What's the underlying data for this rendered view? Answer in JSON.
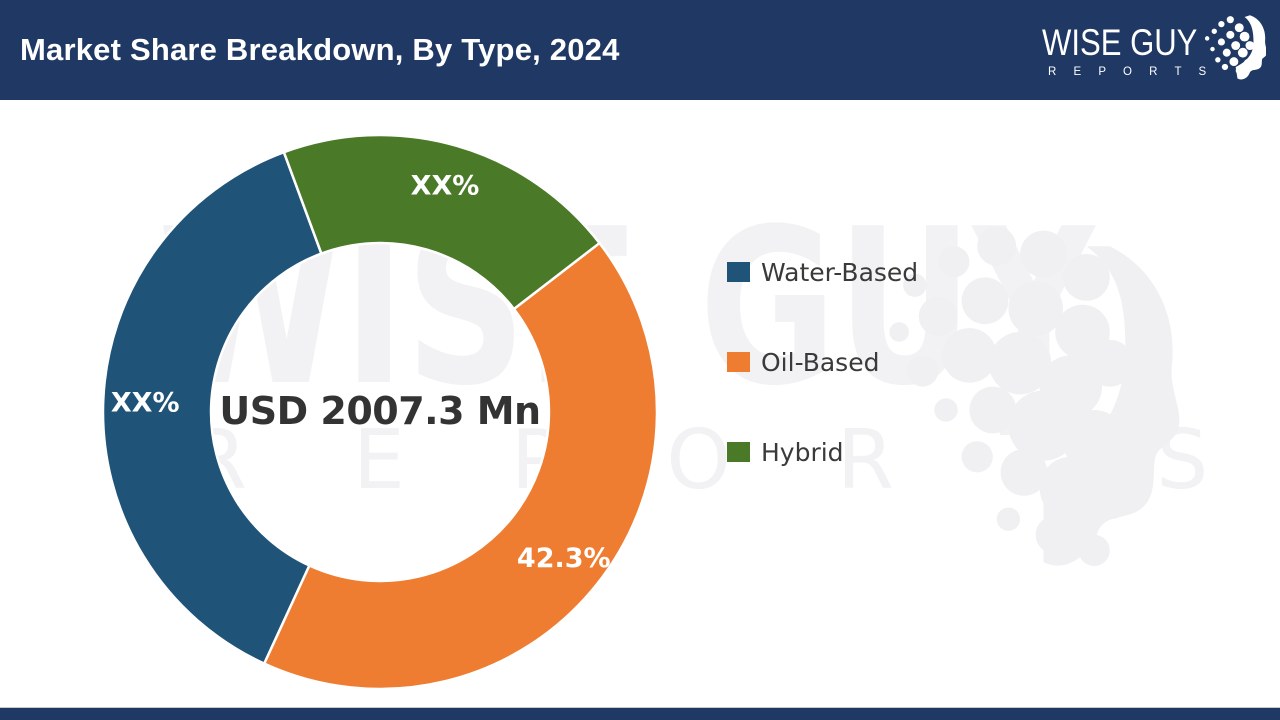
{
  "header": {
    "title": "Market Share Breakdown, By Type, 2024",
    "bg_color": "#1F3864",
    "logo": {
      "name": "WISE GUY",
      "subtext": "R E P O R T S"
    }
  },
  "watermark": {
    "line1": "WISE GUY",
    "line2": "R E P O R T S"
  },
  "chart_data": {
    "type": "pie",
    "subtype": "donut",
    "title": "Market Share Breakdown, By Type, 2024",
    "center_label": "USD 2007.3 Mn",
    "start_angle_deg": 110.3,
    "direction": "counterclockwise",
    "hole_ratio": 0.61,
    "legend_position": "right",
    "series": [
      {
        "name": "Water-Based",
        "value_pct_est": 37.5,
        "display_label": "XX%",
        "color": "#1F5378"
      },
      {
        "name": "Oil-Based",
        "value_pct_est": 42.3,
        "display_label": "42.3%",
        "color": "#EE7D32"
      },
      {
        "name": "Hybrid",
        "value_pct_est": 20.2,
        "display_label": "XX%",
        "color": "#4A7A28"
      }
    ]
  },
  "footer": {
    "bg_color": "#1F3864"
  }
}
